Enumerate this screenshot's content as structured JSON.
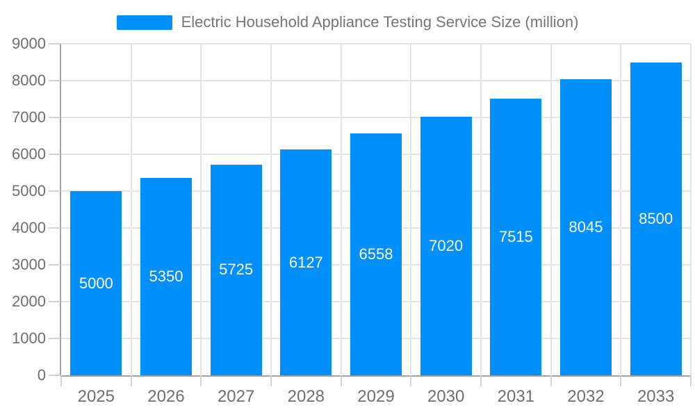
{
  "chart_data": {
    "type": "bar",
    "title": "Electric Household Appliance Testing Service Size (million)",
    "categories": [
      "2025",
      "2026",
      "2027",
      "2028",
      "2029",
      "2030",
      "2031",
      "2032",
      "2033"
    ],
    "values": [
      5000,
      5350,
      5725,
      6127,
      6558,
      7020,
      7515,
      8045,
      8500
    ],
    "xlabel": "",
    "ylabel": "",
    "ylim": [
      0,
      9000
    ],
    "ytick_step": 1000,
    "ytick_labels": [
      "0",
      "1000",
      "2000",
      "3000",
      "4000",
      "5000",
      "6000",
      "7000",
      "8000",
      "9000"
    ],
    "grid": true,
    "legend_position": "top",
    "bar_labels_inside": true
  },
  "colors": {
    "bar": "#008FFB",
    "bar_label": "#FFFFFF",
    "legend_text": "#757575",
    "axis_label": "#6E6E6E",
    "gridline": "#E4E4E4",
    "axis_line": "#A2A2A2",
    "tick": "#D2D2D2",
    "background": "#FFFFFF"
  }
}
